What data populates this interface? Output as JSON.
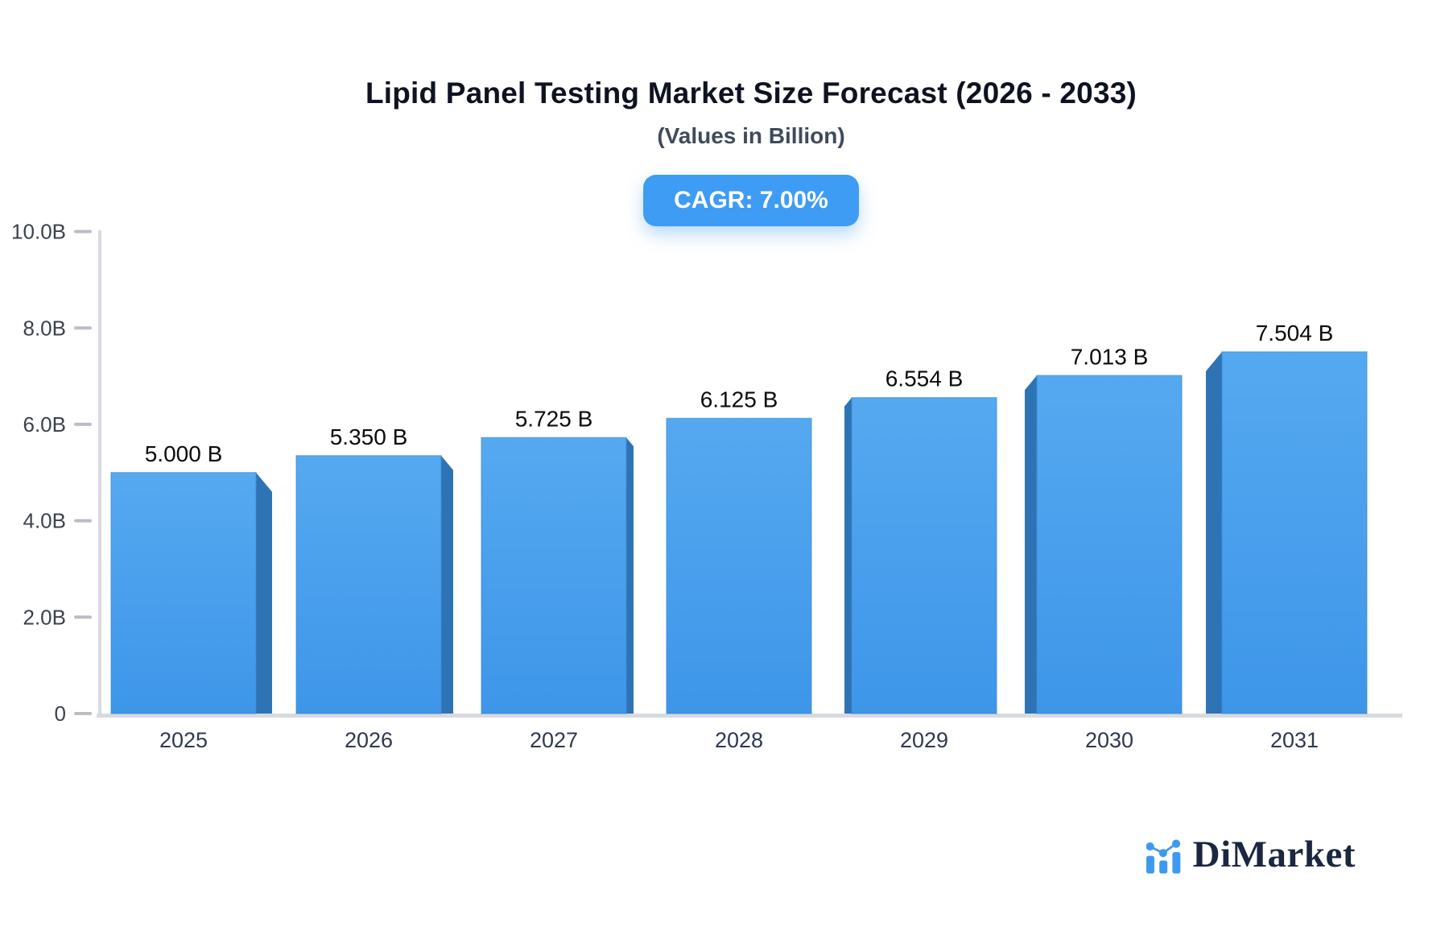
{
  "header": {
    "title": "Lipid Panel Testing Market Size Forecast (2026 - 2033)",
    "subtitle": "(Values in Billion)"
  },
  "badge": {
    "label": "CAGR: 7.00%",
    "bg_color": "#3E9CF4",
    "text_color": "#FFFFFF"
  },
  "chart_data": {
    "type": "bar",
    "categories": [
      "2025",
      "2026",
      "2027",
      "2028",
      "2029",
      "2030",
      "2031"
    ],
    "values": [
      5.0,
      5.35,
      5.725,
      6.125,
      6.554,
      7.013,
      7.504
    ],
    "value_labels": [
      "5.000 B",
      "5.350 B",
      "5.725 B",
      "6.125 B",
      "6.554 B",
      "7.013 B",
      "7.504 B"
    ],
    "title": "Lipid Panel Testing Market Size Forecast (2026 - 2033)",
    "xlabel": "",
    "ylabel": "",
    "ylim": [
      0,
      10
    ],
    "y_ticks": [
      {
        "value": 0,
        "label": "0"
      },
      {
        "value": 2,
        "label": "2.0B"
      },
      {
        "value": 4,
        "label": "4.0B"
      },
      {
        "value": 6,
        "label": "6.0B"
      },
      {
        "value": 8,
        "label": "8.0B"
      },
      {
        "value": 10,
        "label": "10.0B"
      }
    ],
    "grid": false,
    "legend": null,
    "colors": {
      "bar_front_top": "#55A9F0",
      "bar_front_bottom": "#3E96E9",
      "bar_side": "#2E74B5",
      "bar_border": "#3D8BD4",
      "axis_line": "#D7DADE",
      "tick_mark": "#B9BEC6",
      "y_tick_label": "#39434F",
      "x_tick_label": "#2E3950",
      "value_label": "#0B0B0B"
    }
  },
  "logo": {
    "text": "DiMarket",
    "icon": "bar-chart-logo-icon",
    "icon_color": "#3E9AF0",
    "text_color": "#1B2640"
  }
}
